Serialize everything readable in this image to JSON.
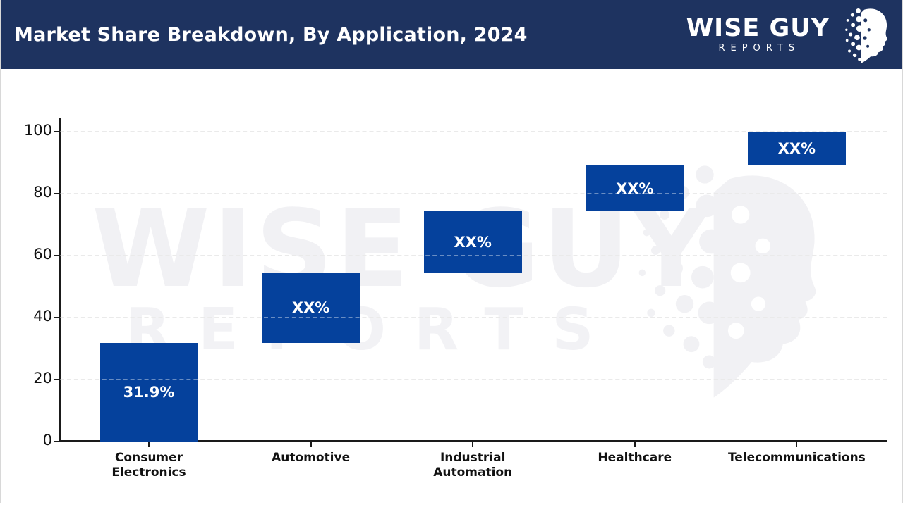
{
  "header": {
    "title": "Market Share Breakdown, By Application, 2024",
    "logo": {
      "line1": "WISE GUY",
      "line2": "REPORTS"
    },
    "bg_color": "#1e3360"
  },
  "watermark": {
    "line1": "WISE GUY",
    "line2": "REPORTS"
  },
  "chart_data": {
    "type": "bar",
    "subtype": "waterfall",
    "title": "Market Share Breakdown, By Application, 2024",
    "categories": [
      "Consumer\nElectronics",
      "Automotive",
      "Industrial\nAutomation",
      "Healthcare",
      "Telecommunications"
    ],
    "series": [
      {
        "name": "Market share (%)",
        "segments": [
          {
            "category": "Consumer Electronics",
            "start": 0,
            "end": 31.9,
            "label": "31.9%"
          },
          {
            "category": "Automotive",
            "start": 31.9,
            "end": 54.4,
            "label": "XX%"
          },
          {
            "category": "Industrial Automation",
            "start": 54.4,
            "end": 74.4,
            "label": "XX%"
          },
          {
            "category": "Healthcare",
            "start": 74.4,
            "end": 89.0,
            "label": "XX%"
          },
          {
            "category": "Telecommunications",
            "start": 89.0,
            "end": 100,
            "label": "XX%"
          }
        ]
      }
    ],
    "xlabel": "",
    "ylabel": "",
    "ylim": [
      0,
      104
    ],
    "yticks": [
      0,
      20,
      40,
      60,
      80,
      100
    ],
    "grid": "horizontal-dashed",
    "legend": "none",
    "bar_color": "#05419c",
    "bar_label_color": "#ffffff",
    "axis_color": "#1a1a1a",
    "grid_color": "#dcdcdc"
  }
}
